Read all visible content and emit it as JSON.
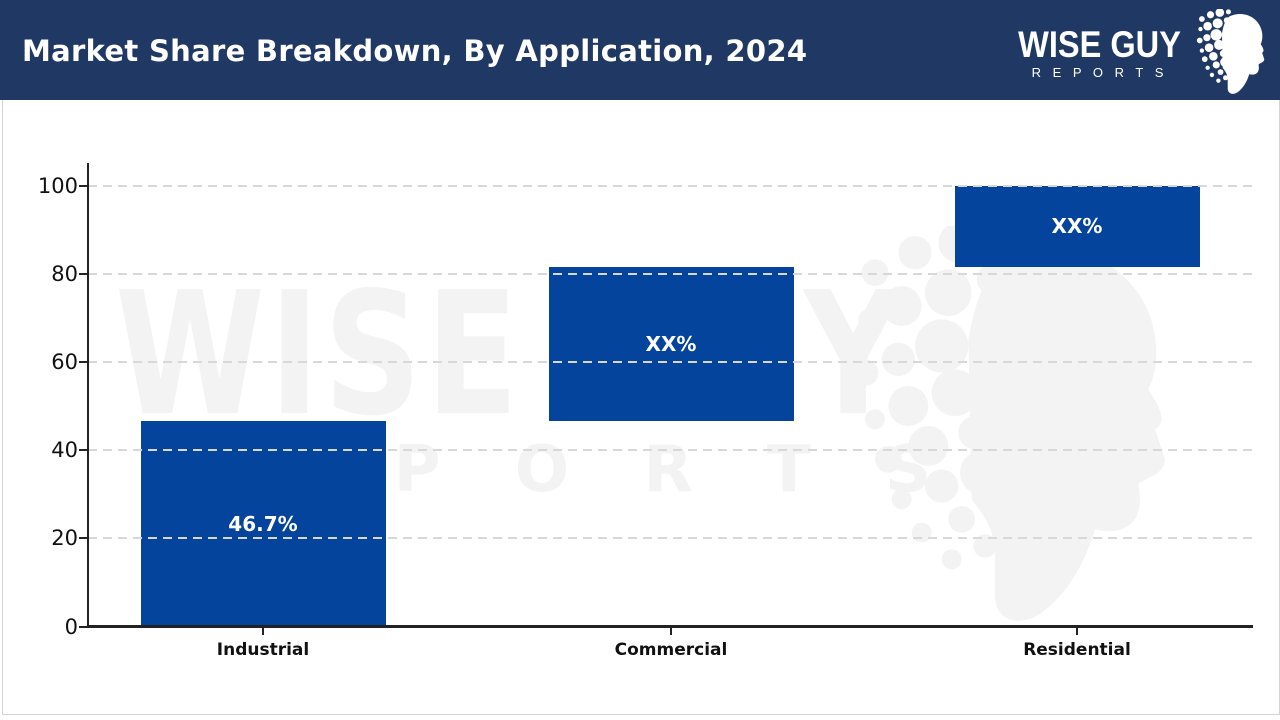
{
  "header": {
    "title": "Market Share Breakdown, By Application, 2024",
    "logo": {
      "line1": "WISE GUY",
      "line2": "R E P O R T S"
    },
    "bg_color": "#203864"
  },
  "watermark": {
    "line1": "WISE GUY",
    "line2": "R E P O R T S"
  },
  "chart_data": {
    "type": "bar",
    "subtype": "waterfall",
    "title": "Market Share Breakdown, By Application, 2024",
    "categories": [
      "Industrial",
      "Commercial",
      "Residential"
    ],
    "segments": [
      {
        "category": "Industrial",
        "start": 0,
        "value": 46.7,
        "end": 46.7,
        "label": "46.7%"
      },
      {
        "category": "Commercial",
        "start": 46.7,
        "value": 34.9,
        "end": 81.6,
        "label": "XX%"
      },
      {
        "category": "Residential",
        "start": 81.6,
        "value": 18.4,
        "end": 100.0,
        "label": "XX%"
      }
    ],
    "y_ticks": [
      0,
      20,
      40,
      60,
      80,
      100
    ],
    "ylim": [
      0,
      100
    ],
    "xlabel": "",
    "ylabel": "",
    "grid": "horizontal-dashed",
    "grid_on_top": true,
    "legend": "none",
    "bar_color": "#05449c",
    "bar_label_color": "#ffffff",
    "axis_color": "#222222"
  }
}
